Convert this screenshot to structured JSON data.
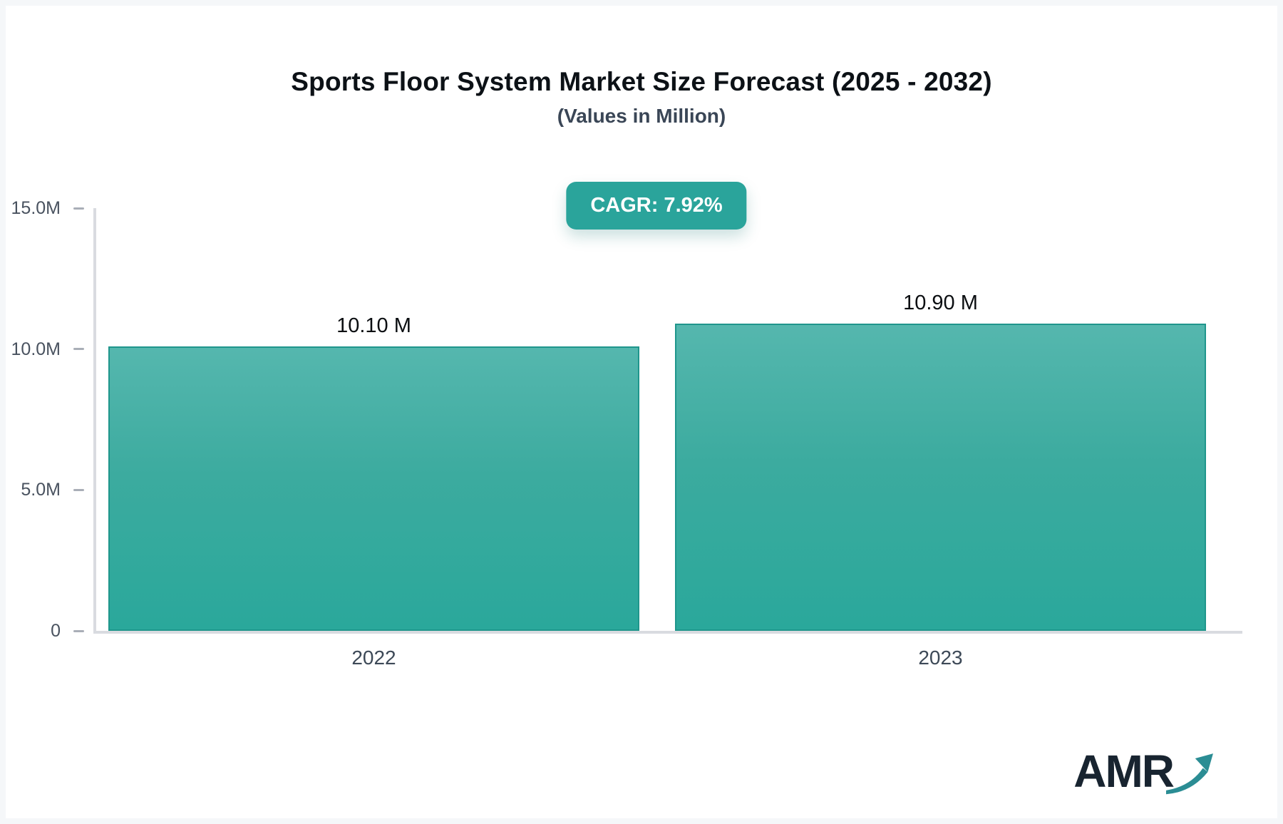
{
  "header": {
    "title": "Sports Floor System Market Size Forecast (2025 - 2032)",
    "subtitle": "(Values in Million)",
    "cagr_badge": "CAGR: 7.92%"
  },
  "chart_data": {
    "type": "bar",
    "title": "Sports Floor System Market Size Forecast (2025 - 2032)",
    "subtitle": "(Values in Million)",
    "cagr_percent": 7.92,
    "categories": [
      "2022",
      "2023"
    ],
    "values": [
      10.1,
      10.9
    ],
    "value_labels": [
      "10.10 M",
      "10.90 M"
    ],
    "unit": "Million",
    "xlabel": "",
    "ylabel": "",
    "ylim": [
      0,
      15
    ],
    "yticks": [
      {
        "value": 15,
        "label": "15.0M"
      },
      {
        "value": 10,
        "label": "10.0M"
      },
      {
        "value": 5,
        "label": "5.0M"
      },
      {
        "value": 0,
        "label": "0"
      }
    ],
    "grid": false,
    "legend": false,
    "colors": {
      "bar_gradient_top": "#55b7ae",
      "bar_gradient_bottom": "#2aa89b",
      "bar_border": "#1f968c",
      "axis_line": "#d9dbe0",
      "tick_dash": "#a9aeb7",
      "tick_label": "#49525f",
      "category_label": "#3d4957",
      "value_label": "#0b0e11",
      "badge_background": "#2aa49b",
      "badge_text": "#ffffff"
    }
  },
  "logo": {
    "text": "AMR",
    "text_color": "#182430",
    "arrow_color": "#2b8d94"
  }
}
